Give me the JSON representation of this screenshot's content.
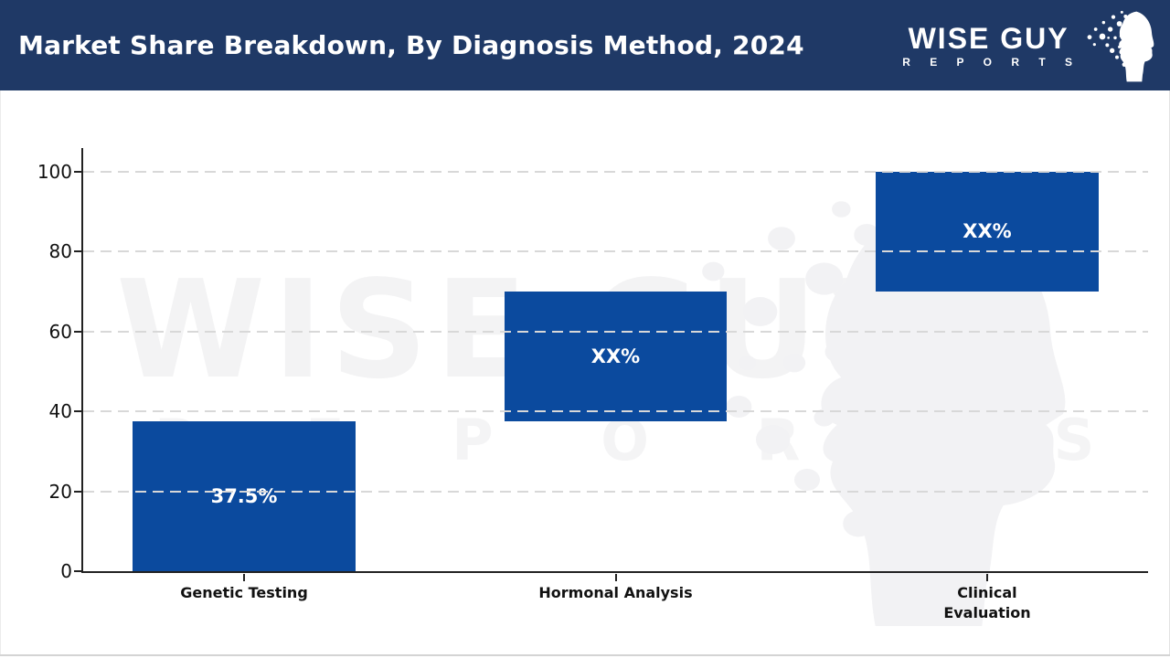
{
  "header": {
    "title": "Market Share Breakdown, By Diagnosis Method, 2024",
    "logo": {
      "line1": "WISE GUY",
      "line2": "R E P O R T S"
    }
  },
  "watermark": {
    "line1": "WISE GUY",
    "line2": "R E P O R T S"
  },
  "colors": {
    "header_bg": "#1f3966",
    "bar": "#0b4a9e",
    "axis": "#222222",
    "gridline": "#d8d8d8",
    "bar_label": "#ffffff",
    "watermark": "#f2f2f4"
  },
  "chart_data": {
    "type": "bar",
    "subtype": "floating-breakdown-bars",
    "title": "Market Share Breakdown, By Diagnosis Method, 2024",
    "categories": [
      "Genetic Testing",
      "Hormonal Analysis",
      "Clinical Evaluation"
    ],
    "tick_labels": [
      "Genetic Testing",
      "Hormonal Analysis",
      "Clinical\nEvaluation"
    ],
    "bars": [
      {
        "category": "Genetic Testing",
        "start": 0,
        "end": 37.5,
        "label": "37.5%"
      },
      {
        "category": "Hormonal Analysis",
        "start": 37.5,
        "end": 70,
        "label": "XX%"
      },
      {
        "category": "Clinical Evaluation",
        "start": 70,
        "end": 100,
        "label": "XX%"
      }
    ],
    "xlabel": "",
    "ylabel": "",
    "ylim": [
      0,
      100
    ],
    "yticks": [
      0,
      20,
      40,
      60,
      80,
      100
    ],
    "grid": "dashed-horizontal",
    "legend": "none",
    "bar_color": "#0b4a9e",
    "label_color": "#ffffff"
  }
}
